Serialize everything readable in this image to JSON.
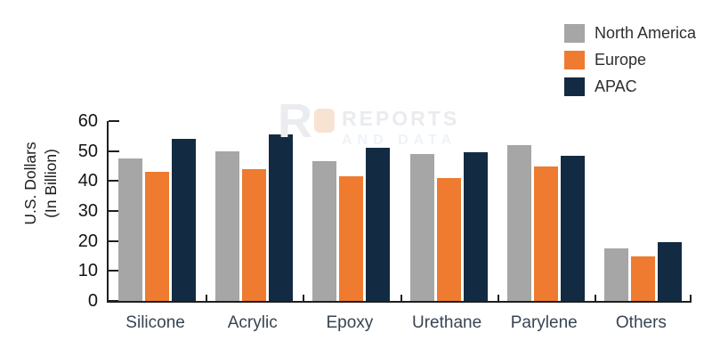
{
  "chart_data": {
    "type": "bar",
    "categories": [
      "Silicone",
      "Acrylic",
      "Epoxy",
      "Urethane",
      "Parylene",
      "Others"
    ],
    "series": [
      {
        "name": "North America",
        "color": "#a6a6a6",
        "values": [
          47.5,
          50,
          46.5,
          49,
          52,
          17.5
        ]
      },
      {
        "name": "Europe",
        "color": "#ee7b30",
        "values": [
          43,
          44,
          41.5,
          41,
          45,
          15
        ]
      },
      {
        "name": "APAC",
        "color": "#132b42",
        "values": [
          54,
          55.5,
          51,
          49.5,
          48.5,
          19.5
        ]
      }
    ],
    "ylabel": "U.S. Dollars (In Billion)",
    "ylabel_lines": [
      "U.S. Dollars",
      "(In Billion)"
    ],
    "ylim": [
      0,
      60
    ],
    "yticks": [
      0,
      10,
      20,
      30,
      40,
      50,
      60
    ],
    "grid": false,
    "legend_position": "top-right"
  },
  "watermark": {
    "logo_letter": "R",
    "line1": "REPORTS",
    "line2": "AND DATA"
  },
  "colors": {
    "axis": "#1f1f1f",
    "y_tick_label": "#141414",
    "category_label": "#374553",
    "legend_label": "#2e2e2e"
  }
}
